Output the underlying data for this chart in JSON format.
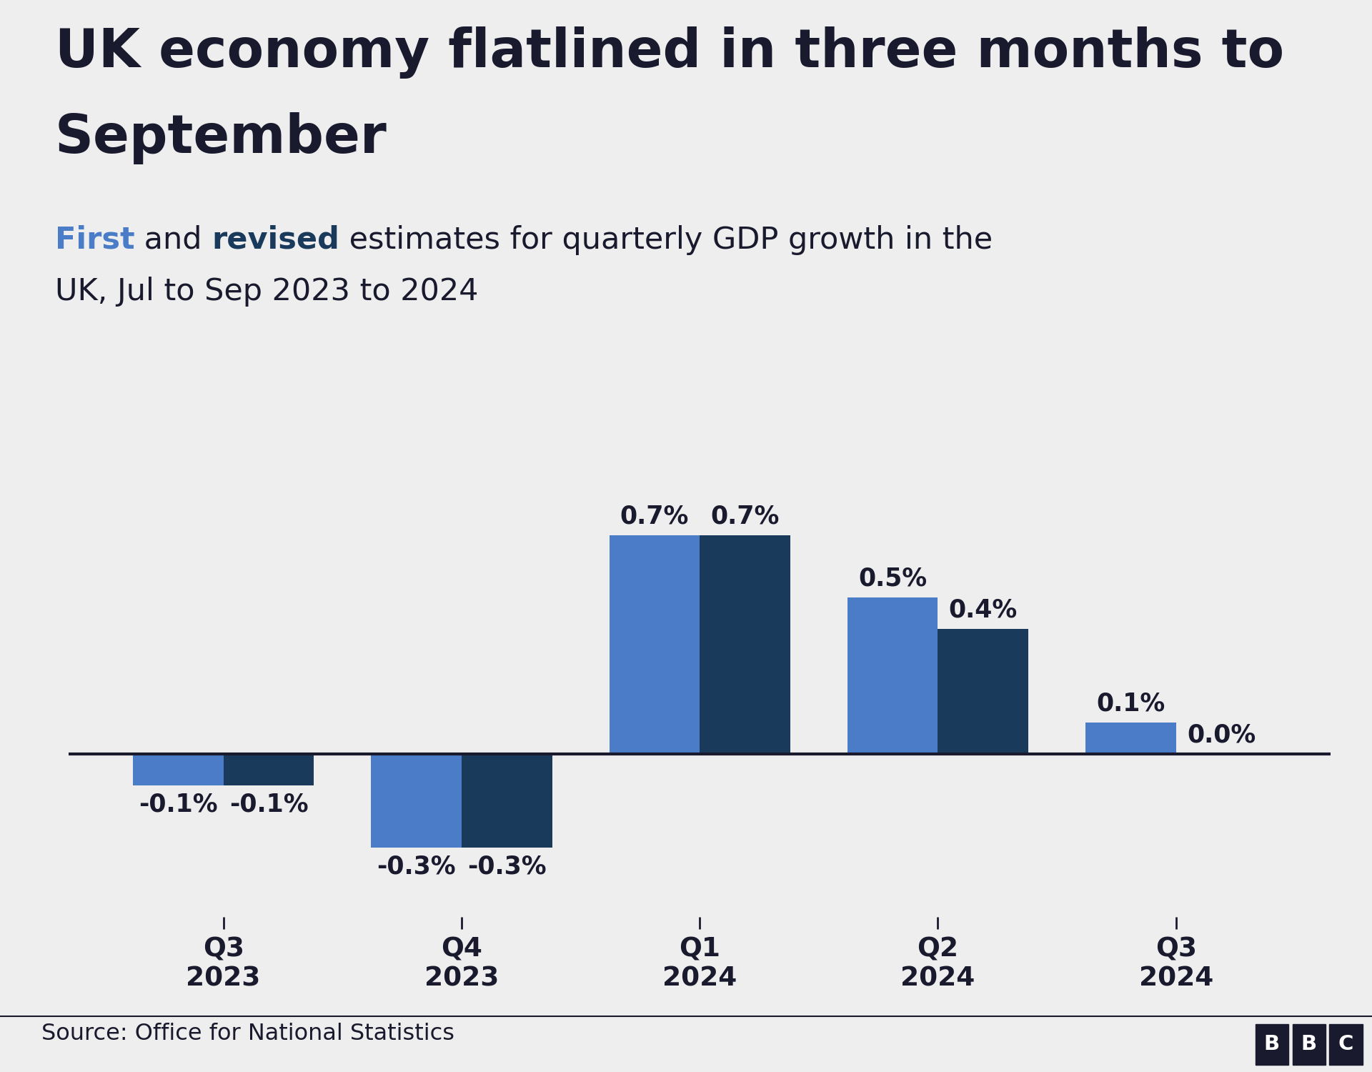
{
  "title_line1": "UK economy flatlined in three months to",
  "title_line2": "September",
  "source": "Source: Office for National Statistics",
  "background_color": "#eeeeee",
  "categories": [
    "Q3\n2023",
    "Q4\n2023",
    "Q1\n2024",
    "Q2\n2024",
    "Q3\n2024"
  ],
  "first_estimates": [
    -0.1,
    -0.3,
    0.7,
    0.5,
    0.1
  ],
  "revised_estimates": [
    -0.1,
    -0.3,
    0.7,
    0.4,
    0.0
  ],
  "first_color": "#4a7cc7",
  "revised_color": "#1a3a5c",
  "bar_width": 0.38,
  "ylim": [
    -0.52,
    0.92
  ],
  "title_fontsize": 54,
  "subtitle_fontsize": 31,
  "source_fontsize": 23,
  "tick_fontsize": 27,
  "value_fontsize": 25,
  "first_label_color": "#4a7cc7",
  "revised_label_color": "#1a3a5c",
  "text_color": "#1a1a2e"
}
